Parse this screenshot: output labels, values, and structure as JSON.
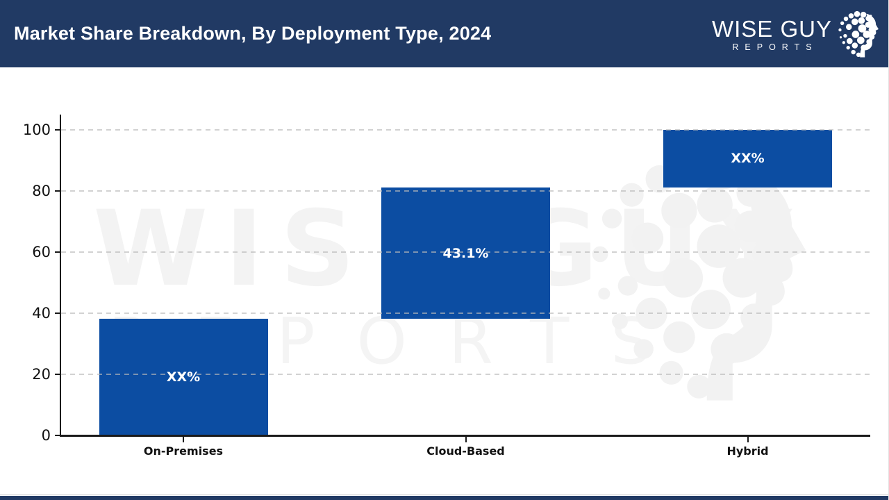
{
  "header": {
    "title": "Market Share Breakdown, By Deployment Type, 2024",
    "logo": {
      "line1": "WISE GUY",
      "line2": "REPORTS"
    }
  },
  "watermark": {
    "line1": "WISE GUY",
    "line2": "REPORTS"
  },
  "colors": {
    "header_bg": "#213a64",
    "bar": "#0c4da2",
    "gridline": "#c9c9c9",
    "axis": "#1a1a1a",
    "bar_label_text": "#ffffff",
    "footer_bar": "#213a64"
  },
  "chart_data": {
    "type": "bar",
    "subtype": "floating-waterfall",
    "title": "Market Share Breakdown, By Deployment Type, 2024",
    "categories": [
      "On-Premises",
      "Cloud-Based",
      "Hybrid"
    ],
    "segments": [
      {
        "category": "On-Premises",
        "start": 0,
        "end": 38.1,
        "value": 38.1,
        "label": "XX%"
      },
      {
        "category": "Cloud-Based",
        "start": 38.1,
        "end": 81.2,
        "value": 43.1,
        "label": "43.1%"
      },
      {
        "category": "Hybrid",
        "start": 81.2,
        "end": 100,
        "value": 18.8,
        "label": "XX%"
      }
    ],
    "yticks": [
      0,
      20,
      40,
      60,
      80,
      100
    ],
    "ylim": [
      0,
      100
    ],
    "xlabel": "",
    "ylabel": "",
    "grid": "dashed-horizontal",
    "legend": "none"
  }
}
